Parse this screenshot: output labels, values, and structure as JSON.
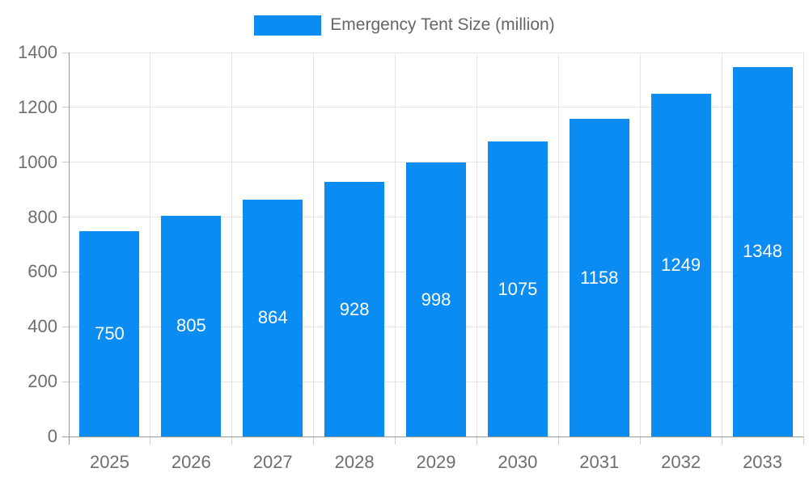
{
  "chart_data": {
    "type": "bar",
    "title": "Emergency Tent Size (million)",
    "legend_position": "top",
    "categories": [
      "2025",
      "2026",
      "2027",
      "2028",
      "2029",
      "2030",
      "2031",
      "2032",
      "2033"
    ],
    "series": [
      {
        "name": "Emergency Tent Size (million)",
        "values": [
          750,
          805,
          864,
          928,
          998,
          1075,
          1158,
          1249,
          1348
        ]
      }
    ],
    "value_labels": [
      750,
      805,
      864,
      928,
      998,
      1075,
      1158,
      1249,
      1348
    ],
    "value_label_position": "inside-center",
    "xlabel": "",
    "ylabel": "",
    "ylim": [
      0,
      1400
    ],
    "yticks": [
      0,
      200,
      400,
      600,
      800,
      1000,
      1200,
      1400
    ],
    "grid": true
  },
  "colors": {
    "bar": "#0a8cf2",
    "value_text": "#ffffff",
    "axis_line": "#999999",
    "grid_line": "#e5e5e5",
    "tick_line": "#cccccc",
    "axis_text": "#6e6e6e",
    "legend_text": "#666666",
    "background": "#ffffff"
  }
}
